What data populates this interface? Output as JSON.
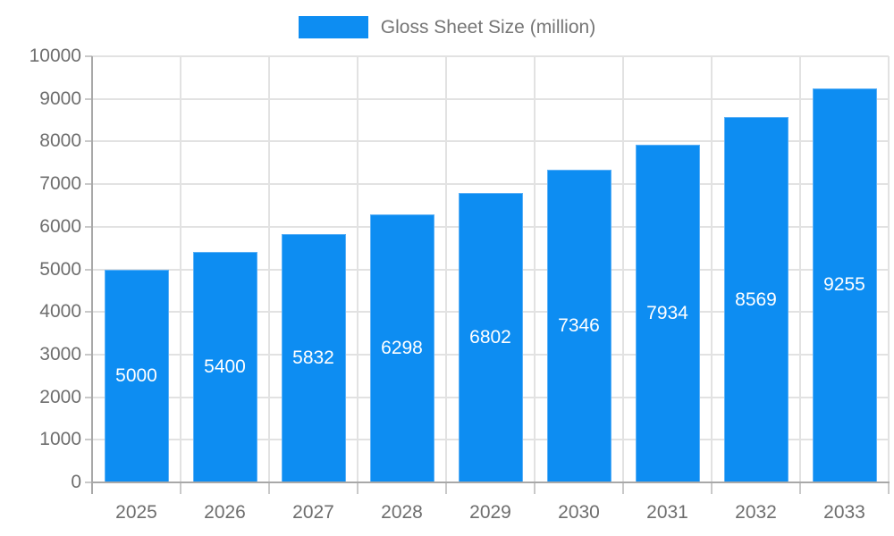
{
  "legend": {
    "label": "Gloss Sheet Size (million)"
  },
  "colors": {
    "bar": "#0d8df2",
    "bar_edge": "#5bb0f6",
    "grid": "#e2e2e2",
    "axis": "#a8a8a8",
    "tick": "#c9c9c9",
    "axis_text": "#6e6e6e",
    "legend_text": "#757575",
    "value_label": "#ffffff",
    "background": "#ffffff"
  },
  "chart_data": {
    "type": "bar",
    "title": "Gloss Sheet Size (million)",
    "categories": [
      "2025",
      "2026",
      "2027",
      "2028",
      "2029",
      "2030",
      "2031",
      "2032",
      "2033"
    ],
    "values": [
      5000,
      5400,
      5832,
      6298,
      6802,
      7346,
      7934,
      8569,
      9255
    ],
    "series_name": "Gloss Sheet Size (million)",
    "xlabel": "",
    "ylabel": "",
    "ylim": [
      0,
      10000
    ],
    "yticks": [
      0,
      1000,
      2000,
      3000,
      4000,
      5000,
      6000,
      7000,
      8000,
      9000,
      10000
    ],
    "grid": true,
    "legend_position": "top",
    "value_labels": "inside-center"
  }
}
